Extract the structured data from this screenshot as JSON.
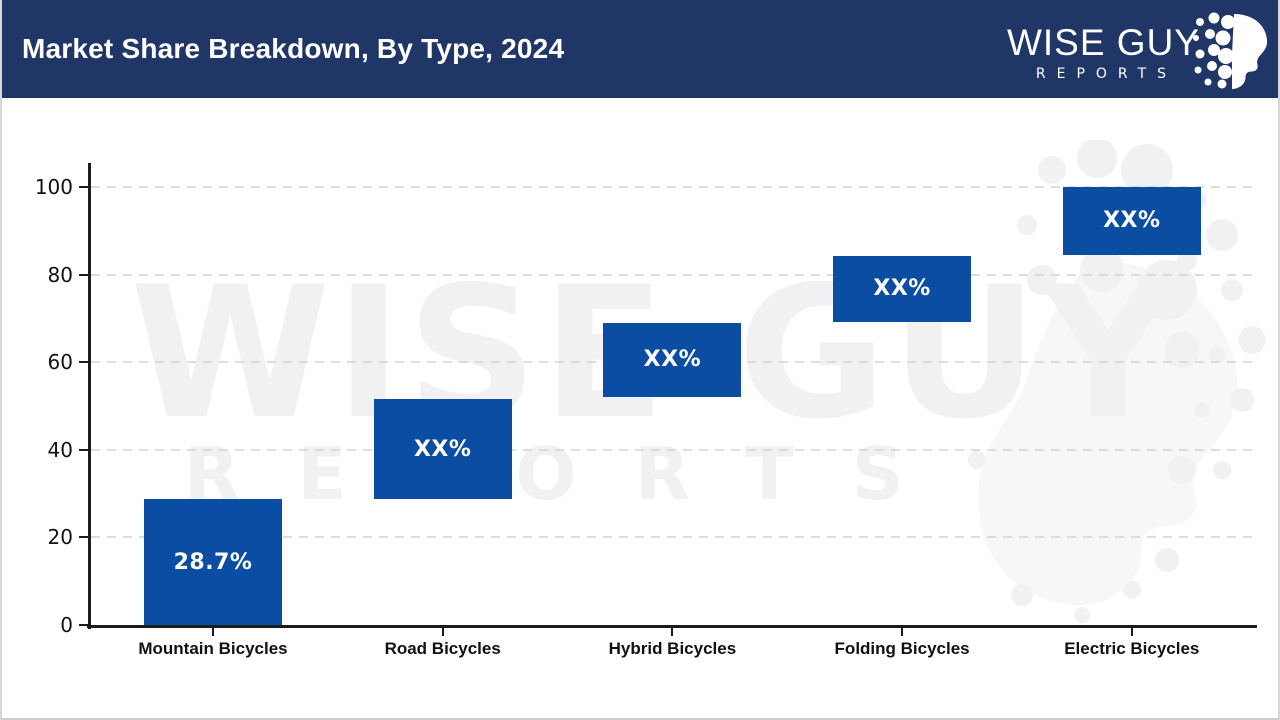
{
  "header": {
    "title": "Market Share Breakdown, By Type, 2024",
    "bg_color": "#203666",
    "logo": {
      "line1": "WISE GUY",
      "line2": "REPORTS"
    }
  },
  "watermark": {
    "line1": "WISE GUY",
    "line2": "REPORTS"
  },
  "chart_data": {
    "type": "bar",
    "subtype": "floating-waterfall",
    "title": "Market Share Breakdown, By Type, 2024",
    "categories": [
      "Mountain Bicycles",
      "Road Bicycles",
      "Hybrid Bicycles",
      "Folding Bicycles",
      "Electric Bicycles"
    ],
    "segments": [
      {
        "category": "Mountain Bicycles",
        "start": 0,
        "end": 28.7,
        "label": "28.7%"
      },
      {
        "category": "Road Bicycles",
        "start": 28.7,
        "end": 51.6,
        "label": "XX%"
      },
      {
        "category": "Hybrid Bicycles",
        "start": 52.1,
        "end": 69.0,
        "label": "XX%"
      },
      {
        "category": "Folding Bicycles",
        "start": 69.2,
        "end": 84.3,
        "label": "XX%"
      },
      {
        "category": "Electric Bicycles",
        "start": 84.5,
        "end": 100.0,
        "label": "XX%"
      }
    ],
    "xlabel": "",
    "ylabel": "",
    "y_ticks": [
      0,
      20,
      40,
      60,
      80,
      100
    ],
    "ylim": [
      0,
      105
    ],
    "grid": "horizontal-dashed",
    "legend": "none",
    "bar_color": "#0b4da2",
    "bar_label_color": "#ffffff",
    "axis_color": "#1c1c1c",
    "grid_color": "#dcdcdc"
  },
  "colors": {
    "header_bg": "#203666",
    "watermark": "#f1f1f4",
    "edge_line": "#cccccc"
  }
}
